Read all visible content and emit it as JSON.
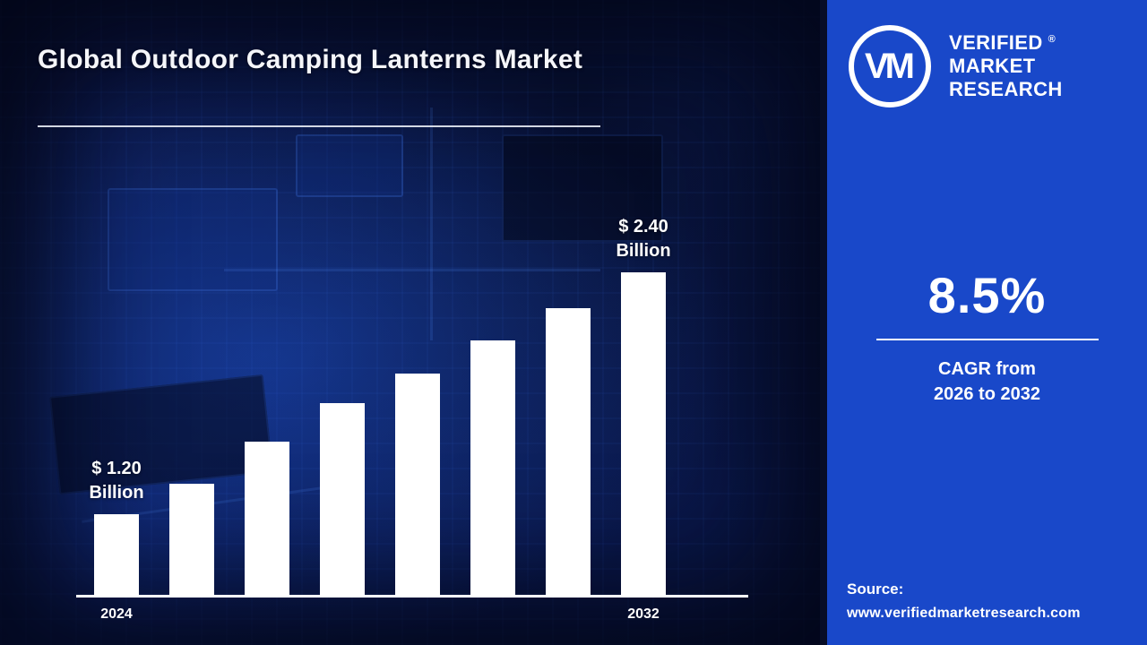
{
  "title": "Global Outdoor Camping Lanterns Market",
  "chart_data": {
    "type": "bar",
    "categories": [
      "2024",
      "",
      "",
      "",
      "",
      "",
      "",
      "2032"
    ],
    "values": [
      1.2,
      1.35,
      1.56,
      1.75,
      1.9,
      2.06,
      2.22,
      2.4
    ],
    "unit": "USD Billion",
    "bar_color": "#ffffff",
    "axis_color": "#ffffff",
    "annotations": [
      {
        "index": 0,
        "lines": [
          "$ 1.20",
          "Billion"
        ]
      },
      {
        "index": 7,
        "lines": [
          "$ 2.40",
          "Billion"
        ]
      }
    ],
    "x_tick_labels_visible": [
      "2024",
      "2032"
    ],
    "ylim": [
      0.8,
      2.6
    ],
    "grid": false,
    "legend": false
  },
  "brand": {
    "monogram": "VM",
    "registered_mark": "®",
    "name_lines": [
      "VERIFIED",
      "MARKET",
      "RESEARCH"
    ]
  },
  "stats": {
    "cagr_value": "8.5%",
    "cagr_caption_line1": "CAGR from",
    "cagr_caption_line2": "2026 to 2032"
  },
  "source": {
    "label": "Source:",
    "url": "www.verifiedmarketresearch.com"
  },
  "colors": {
    "panel_blue": "#1948c9",
    "background_navy": "#0a1440",
    "text_white": "#ffffff"
  }
}
